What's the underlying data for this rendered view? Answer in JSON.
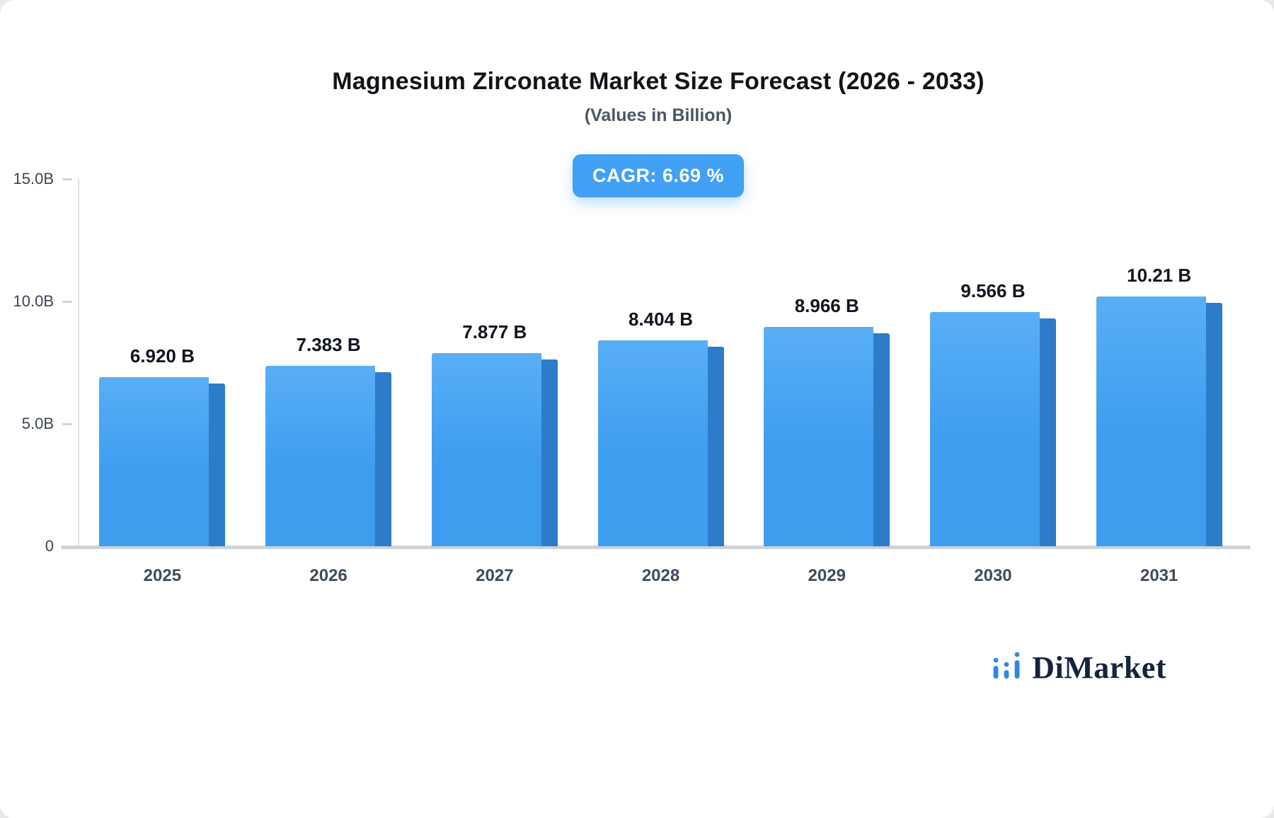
{
  "header": {
    "title": "Magnesium Zirconate Market Size Forecast (2026 - 2033)",
    "subtitle": "(Values in Billion)",
    "cagr_label": "CAGR: 6.69 %"
  },
  "chart_data": {
    "type": "bar",
    "categories": [
      "2025",
      "2026",
      "2027",
      "2028",
      "2029",
      "2030",
      "2031"
    ],
    "values": [
      6.92,
      7.383,
      7.877,
      8.404,
      8.966,
      9.566,
      10.21
    ],
    "value_labels": [
      "6.920 B",
      "7.383 B",
      "7.877 B",
      "8.404 B",
      "8.966 B",
      "9.566 B",
      "10.21 B"
    ],
    "title": "Magnesium Zirconate Market Size Forecast (2026 - 2033)",
    "xlabel": "",
    "ylabel": "",
    "ylim": [
      0,
      15
    ],
    "yticks": [
      {
        "value": 0,
        "label": "0"
      },
      {
        "value": 5,
        "label": "5.0B"
      },
      {
        "value": 10,
        "label": "10.0B"
      },
      {
        "value": 15,
        "label": "15.0B"
      }
    ],
    "grid": false,
    "legend": false
  },
  "colors": {
    "accent": "#41a0f3",
    "bar_top": "#58aff5",
    "bar_main": "#3f9df0",
    "bar_dark": "#2c7cc9"
  },
  "logo": {
    "text": "DiMarket"
  }
}
